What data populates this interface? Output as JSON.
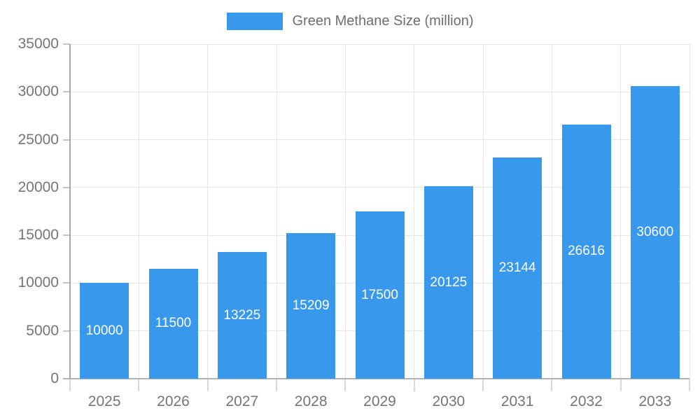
{
  "legend": {
    "label": "Green Methane Size (million)"
  },
  "chart_data": {
    "type": "bar",
    "title": "Green Methane Size (million)",
    "categories": [
      "2025",
      "2026",
      "2027",
      "2028",
      "2029",
      "2030",
      "2031",
      "2032",
      "2033"
    ],
    "series": [
      {
        "name": "Green Methane Size (million)",
        "values": [
          10000,
          11500,
          13225,
          15209,
          17500,
          20125,
          23144,
          26616,
          30600
        ]
      }
    ],
    "value_labels": [
      "10000",
      "11500",
      "13225",
      "15209",
      "17500",
      "20125",
      "23144",
      "26616",
      "30600"
    ],
    "xlabel": "",
    "ylabel": "",
    "ylim": [
      0,
      35000
    ],
    "ytick_step": 5000,
    "ytick_labels": [
      "0",
      "5000",
      "10000",
      "15000",
      "20000",
      "25000",
      "30000",
      "35000"
    ],
    "grid": true,
    "legend_position": "top",
    "colors": {
      "bar": "#3898ec",
      "grid": "#e6e6e6",
      "axis_line": "#a6a6a6",
      "tick": "#c6c6c6",
      "axis_text": "#757575",
      "value_text": "#ffffff",
      "legend_text": "#6e6e6e",
      "background": "#ffffff"
    }
  }
}
